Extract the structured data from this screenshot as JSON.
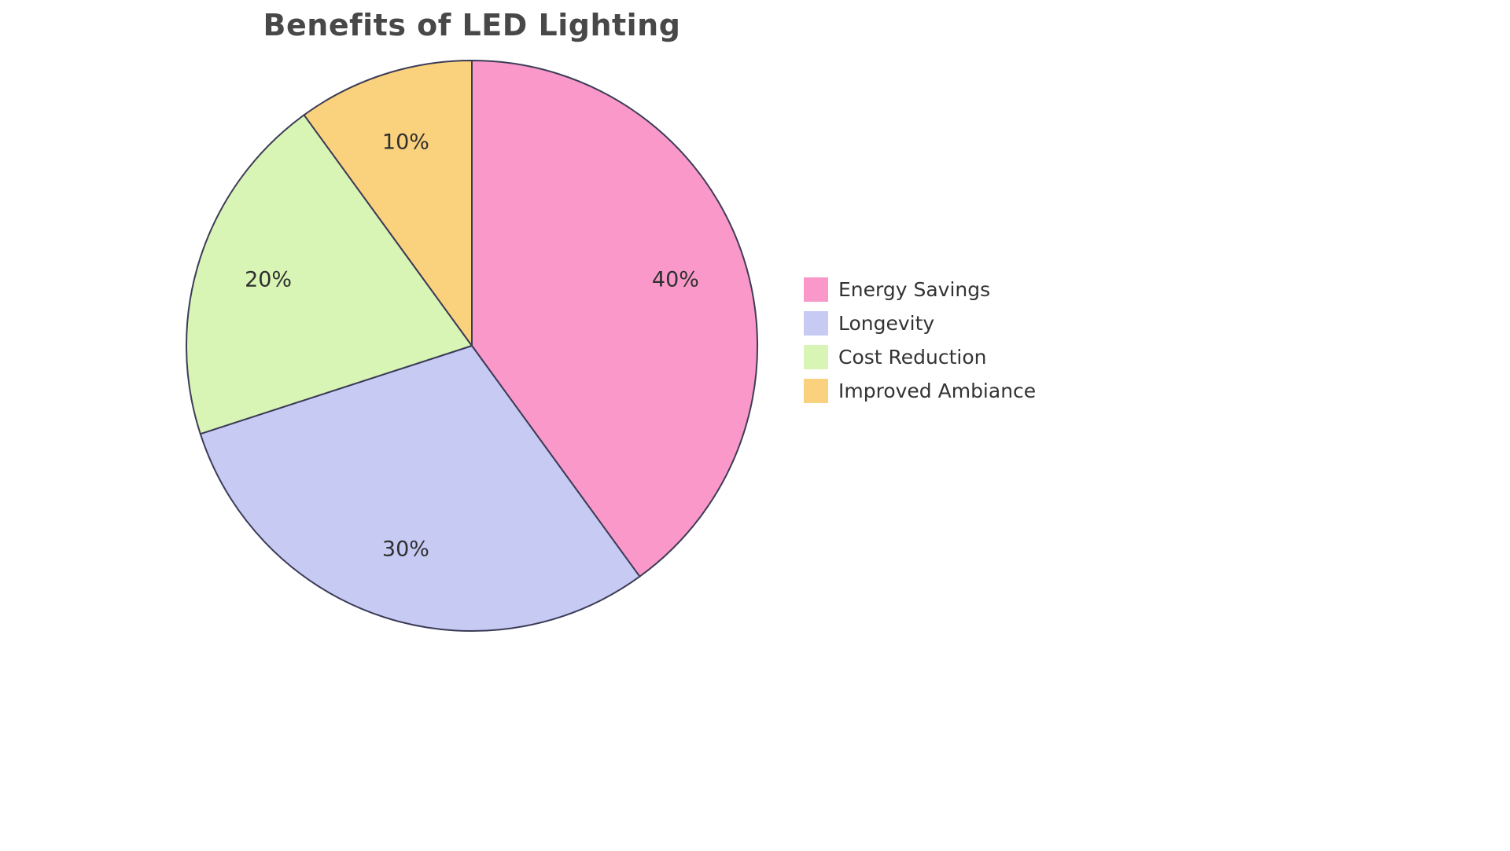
{
  "chart_data": {
    "type": "pie",
    "title": "Benefits of LED Lighting",
    "labels": [
      "Energy Savings",
      "Longevity",
      "Cost Reduction",
      "Improved Ambiance"
    ],
    "values": [
      40,
      30,
      20,
      10
    ],
    "slice_labels": [
      "40%",
      "30%",
      "20%",
      "10%"
    ],
    "colors": [
      "#F998C9",
      "#C7CBF4",
      "#D8F5B5",
      "#FAD17C"
    ],
    "stroke_color": "#3C3C57",
    "start_angle_deg": 0,
    "direction": "clockwise",
    "legend_position": "right",
    "label_color": "#2F2F2F",
    "title_color": "#484848",
    "background": "#FFFFFF"
  }
}
